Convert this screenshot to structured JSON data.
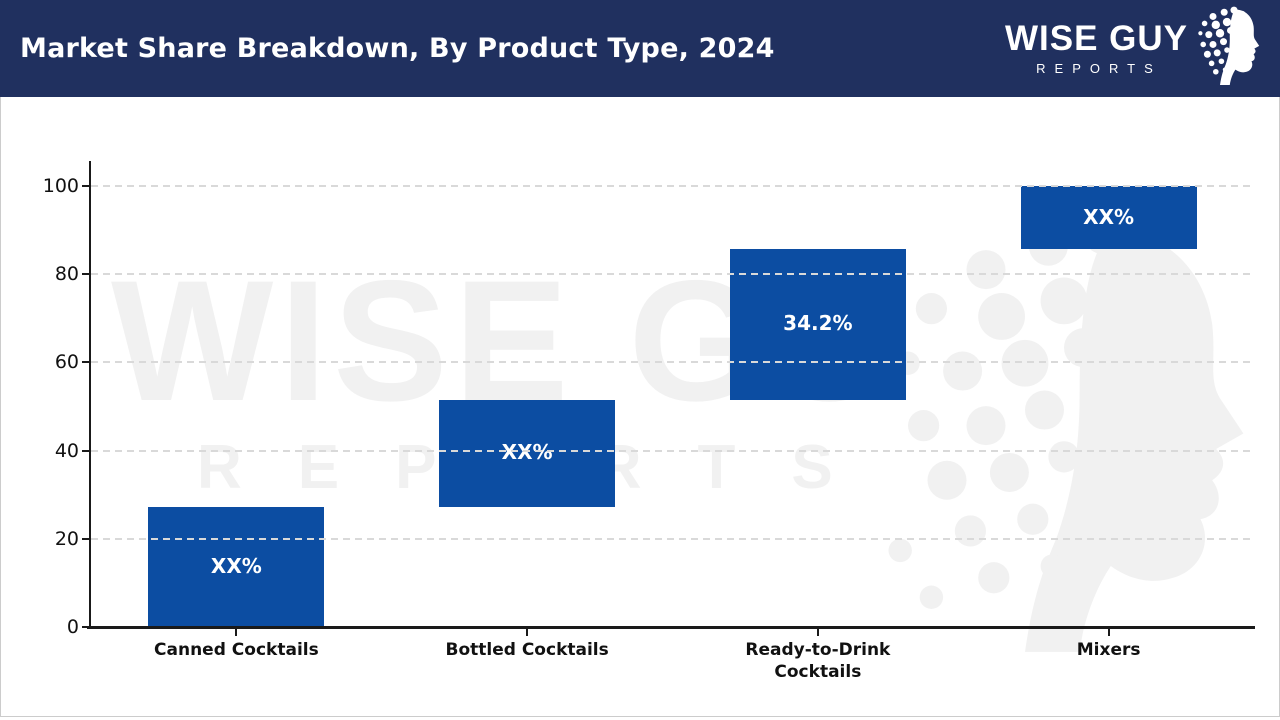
{
  "header": {
    "title": "Market Share Breakdown, By Product Type, 2024",
    "bg_color": "#20305f",
    "logo": {
      "wordmark": "WISE GUY",
      "subtitle": "REPORTS"
    }
  },
  "watermark": {
    "wordmark": "WISE GU",
    "subtitle": "REPORTS"
  },
  "chart_data": {
    "type": "bar",
    "variant": "floating-waterfall",
    "title": "Market Share Breakdown, By Product Type, 2024",
    "categories": [
      "Canned Cocktails",
      "Bottled Cocktails",
      "Ready-to-Drink Cocktails",
      "Mixers"
    ],
    "bars": [
      {
        "label": "XX%",
        "start": 0,
        "end": 27.3
      },
      {
        "label": "XX%",
        "start": 27.3,
        "end": 51.5
      },
      {
        "label": "34.2%",
        "start": 51.5,
        "end": 85.7
      },
      {
        "label": "XX%",
        "start": 85.7,
        "end": 100
      }
    ],
    "xlabel": "",
    "ylabel": "",
    "ylim": [
      0,
      100
    ],
    "yticks": [
      0,
      20,
      40,
      60,
      80,
      100
    ],
    "grid": "horizontal-dashed",
    "legend": "none",
    "bar_color": "#0c4da2",
    "bar_label_color": "#ffffff",
    "grid_color": "#d9d9d9",
    "axis_color": "#1a1a1a"
  }
}
